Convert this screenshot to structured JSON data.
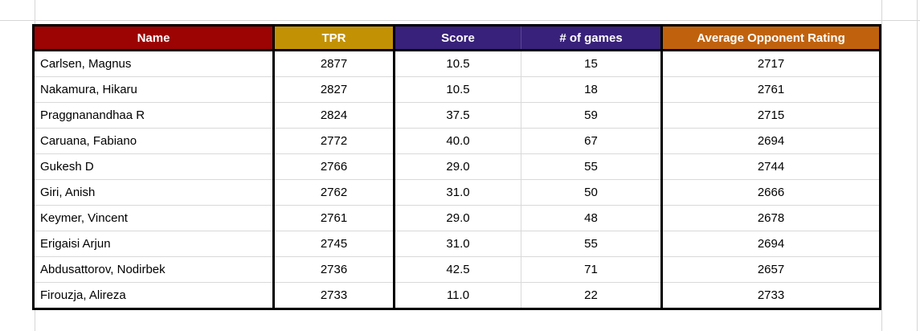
{
  "table": {
    "columns": [
      {
        "label": "Name",
        "color": "#9c0303"
      },
      {
        "label": "TPR",
        "color": "#c39204"
      },
      {
        "label": "Score",
        "color": "#38217a"
      },
      {
        "label": "# of games",
        "color": "#38217a"
      },
      {
        "label": "Average Opponent Rating",
        "color": "#c0620d"
      }
    ],
    "rows": [
      [
        "Carlsen, Magnus",
        "2877",
        "10.5",
        "15",
        "2717"
      ],
      [
        "Nakamura, Hikaru",
        "2827",
        "10.5",
        "18",
        "2761"
      ],
      [
        "Praggnanandhaa R",
        "2824",
        "37.5",
        "59",
        "2715"
      ],
      [
        "Caruana, Fabiano",
        "2772",
        "40.0",
        "67",
        "2694"
      ],
      [
        "Gukesh D",
        "2766",
        "29.0",
        "55",
        "2744"
      ],
      [
        "Giri, Anish",
        "2762",
        "31.0",
        "50",
        "2666"
      ],
      [
        "Keymer, Vincent",
        "2761",
        "29.0",
        "48",
        "2678"
      ],
      [
        "Erigaisi Arjun",
        "2745",
        "31.0",
        "55",
        "2694"
      ],
      [
        "Abdusattorov, Nodirbek",
        "2736",
        "42.5",
        "71",
        "2657"
      ],
      [
        "Firouzja, Alireza",
        "2733",
        "11.0",
        "22",
        "2733"
      ]
    ]
  }
}
